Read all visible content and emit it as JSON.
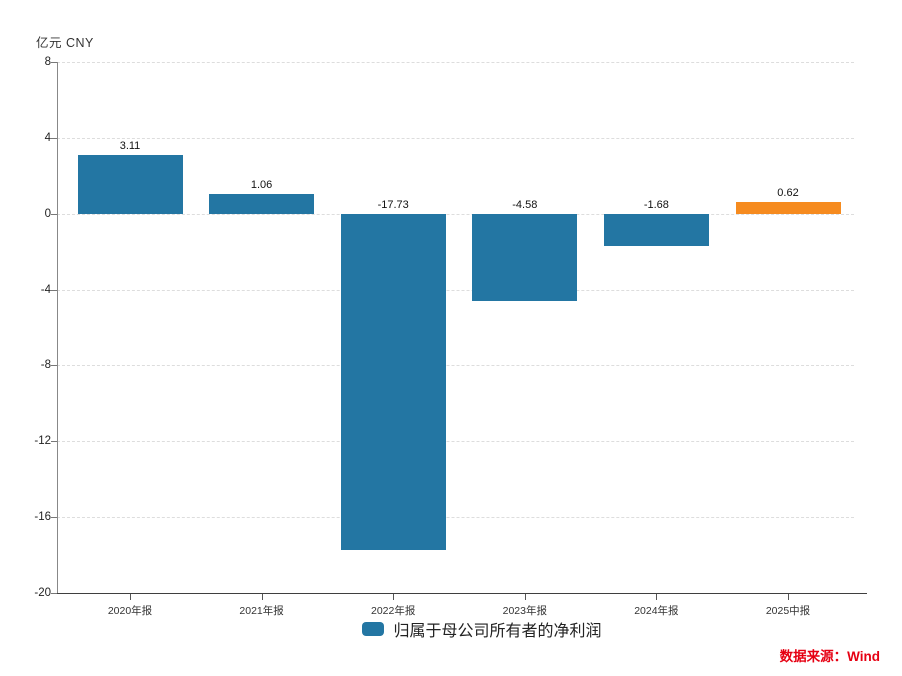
{
  "chart": {
    "unit_label": "亿元 CNY",
    "legend_label": "归属于母公司所有者的净利润",
    "source": "数据来源：Wind"
  },
  "colors": {
    "bar_blue": "#2376a3",
    "bar_highlight_orange": "#f68b1f",
    "source_red": "#e60012",
    "axis_dark": "#3f3f3f",
    "axis_light": "#888888",
    "gridline": "#dddddd"
  },
  "chart_data": {
    "type": "bar",
    "title": "",
    "ylabel": "亿元 CNY",
    "xlabel": "",
    "categories": [
      "2020年报",
      "2021年报",
      "2022年报",
      "2023年报",
      "2024年报",
      "2025中报"
    ],
    "series": [
      {
        "name": "归属于母公司所有者的净利润",
        "values": [
          3.11,
          1.06,
          -17.73,
          -4.58,
          -1.68,
          0.62
        ]
      }
    ],
    "value_labels": [
      "3.11",
      "1.06",
      "-17.73",
      "-4.58",
      "-1.68",
      "0.62"
    ],
    "bar_colors": [
      "#2376a3",
      "#2376a3",
      "#2376a3",
      "#2376a3",
      "#2376a3",
      "#f68b1f"
    ],
    "ylim": [
      -20,
      8
    ],
    "yticks": [
      8,
      4,
      0,
      -4,
      -8,
      -12,
      -16,
      -20
    ],
    "grid": "horizontal-dashed",
    "legend_position": "bottom",
    "source": "数据来源：Wind"
  }
}
